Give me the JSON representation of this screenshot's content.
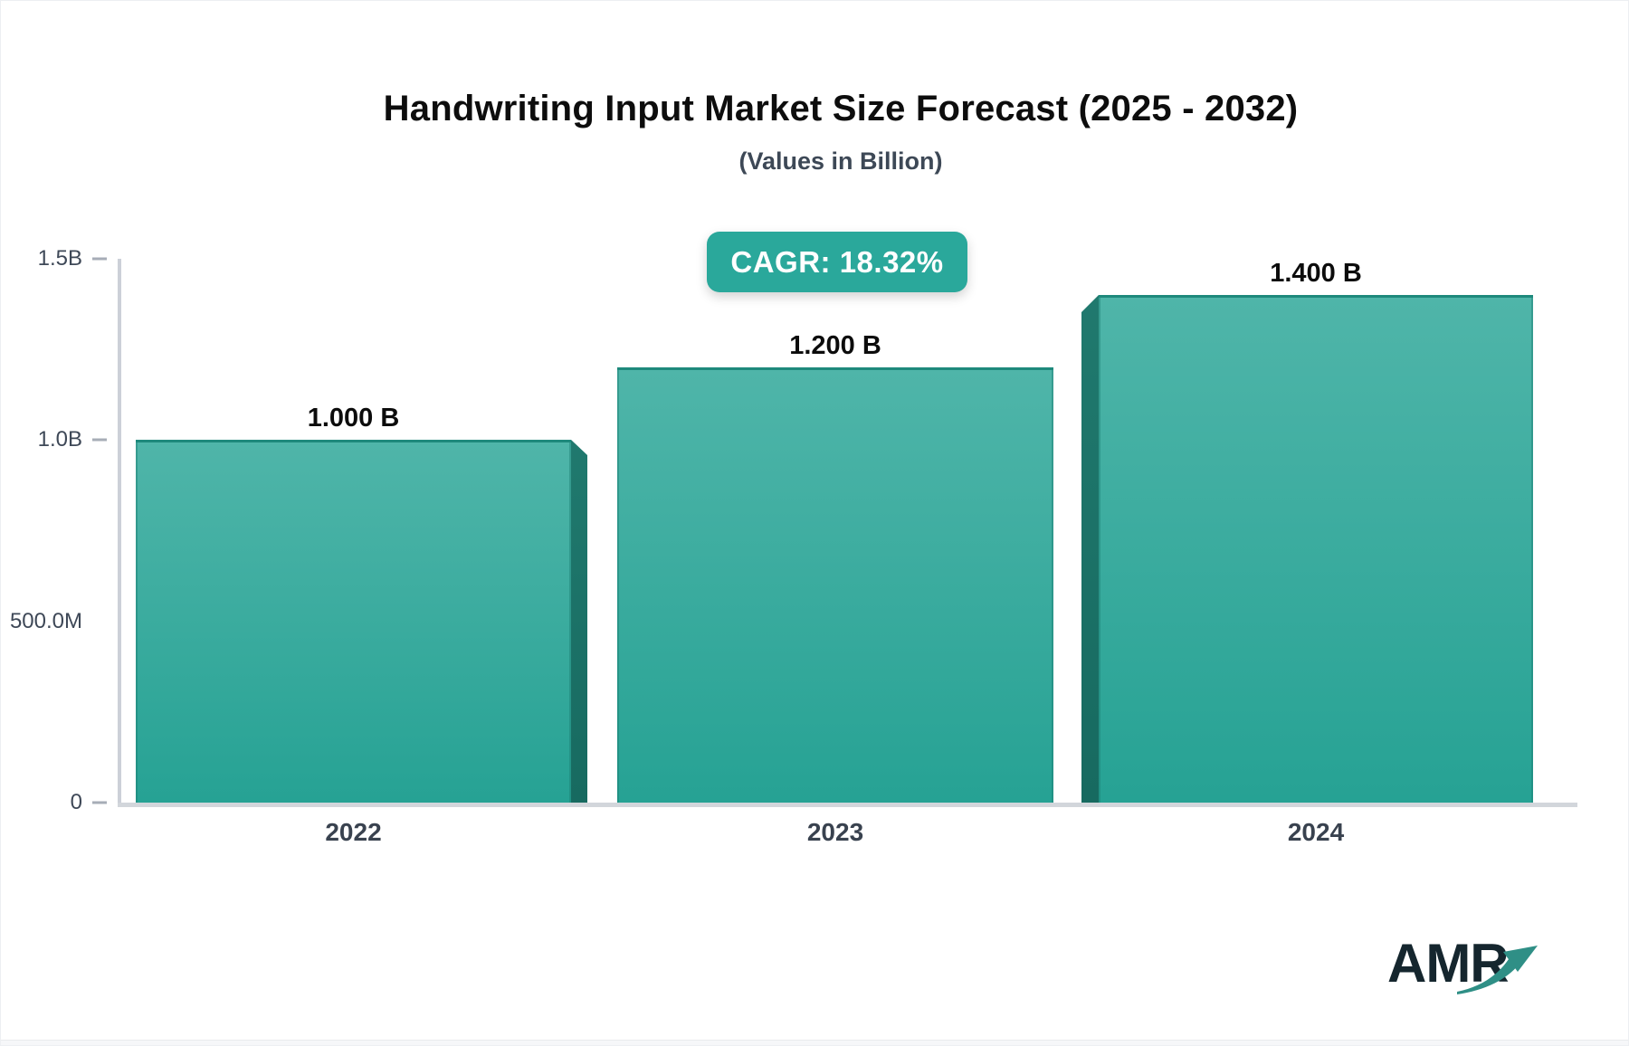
{
  "chart_data": {
    "type": "bar",
    "title": "Handwriting Input Market Size Forecast (2025 - 2032)",
    "subtitle": "(Values in Billion)",
    "cagr_label": "CAGR: 18.32%",
    "cagr": "18.32%",
    "categories": [
      "2022",
      "2023",
      "2024"
    ],
    "values": [
      1.0,
      1.2,
      1.4
    ],
    "value_labels": [
      "1.000 B",
      "1.200 B",
      "1.400 B"
    ],
    "unit": "Billion",
    "ylim": [
      0,
      1.5
    ],
    "grid": false,
    "legend": false,
    "bar_effect": {
      "style": "3d-bevel",
      "bevel_sides": [
        "right",
        "none",
        "left"
      ]
    },
    "yticks": [
      {
        "label": "0",
        "value": 0,
        "dash": true
      },
      {
        "label": "500.0M",
        "value": 0.5,
        "dash": false
      },
      {
        "label": "1.0B",
        "value": 1.0,
        "dash": true
      },
      {
        "label": "1.5B",
        "value": 1.5,
        "dash": true
      }
    ]
  },
  "logo": {
    "text": "AMR",
    "icon": "growth-arrow-icon"
  },
  "colors": {
    "accent": "#2aa89b",
    "bar_top": "#4fb5a9",
    "bar_bottom": "#26a294",
    "bar_side": "#1d7469",
    "bar_stroke": "#1e897c",
    "axis_line": "#ccd0d8",
    "tick_text": "#3e4857",
    "title_text": "#0d0d0d",
    "subtitle_text": "#3d4856",
    "logo_text": "#15262e",
    "logo_arrow": "#2f8f86"
  }
}
